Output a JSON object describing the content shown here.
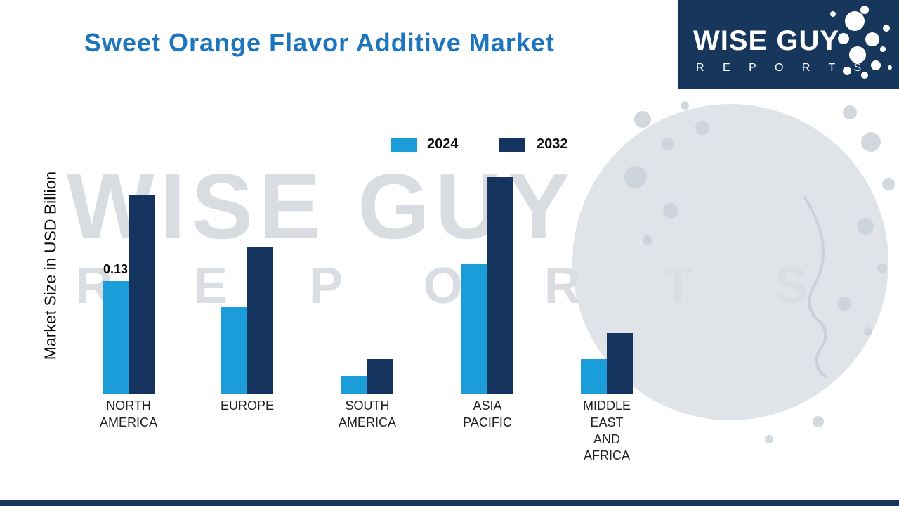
{
  "page": {
    "title": "Sweet Orange Flavor Additive Market"
  },
  "logo": {
    "line1": "WISE GUY",
    "line2": "R E P O R T S"
  },
  "watermark": {
    "line1": "WISE GUY",
    "line2": "R E P O R T S"
  },
  "colors": {
    "title_blue": "#1d76bd",
    "series_2024": "#1b9dd9",
    "series_2032": "#14335e",
    "logo_navy": "#16365c",
    "watermark_gray": "#d9dde2"
  },
  "chart_data": {
    "type": "bar",
    "title": "Sweet Orange Flavor Additive Market",
    "xlabel": "",
    "ylabel": "Market Size in USD Billion",
    "ylim": [
      0,
      0.3
    ],
    "grid": false,
    "legend_position": "top",
    "categories": [
      "NORTH\nAMERICA",
      "EUROPE",
      "SOUTH\nAMERICA",
      "ASIA\nPACIFIC",
      "MIDDLE\nEAST\nAND\nAFRICA"
    ],
    "series": [
      {
        "name": "2024",
        "color": "#1b9dd9",
        "values": [
          0.13,
          0.1,
          0.02,
          0.15,
          0.04
        ]
      },
      {
        "name": "2032",
        "color": "#14335e",
        "values": [
          0.23,
          0.17,
          0.04,
          0.25,
          0.07
        ]
      }
    ],
    "annotations": [
      {
        "series": "2024",
        "category_index": 0,
        "text": "0.13"
      }
    ]
  }
}
